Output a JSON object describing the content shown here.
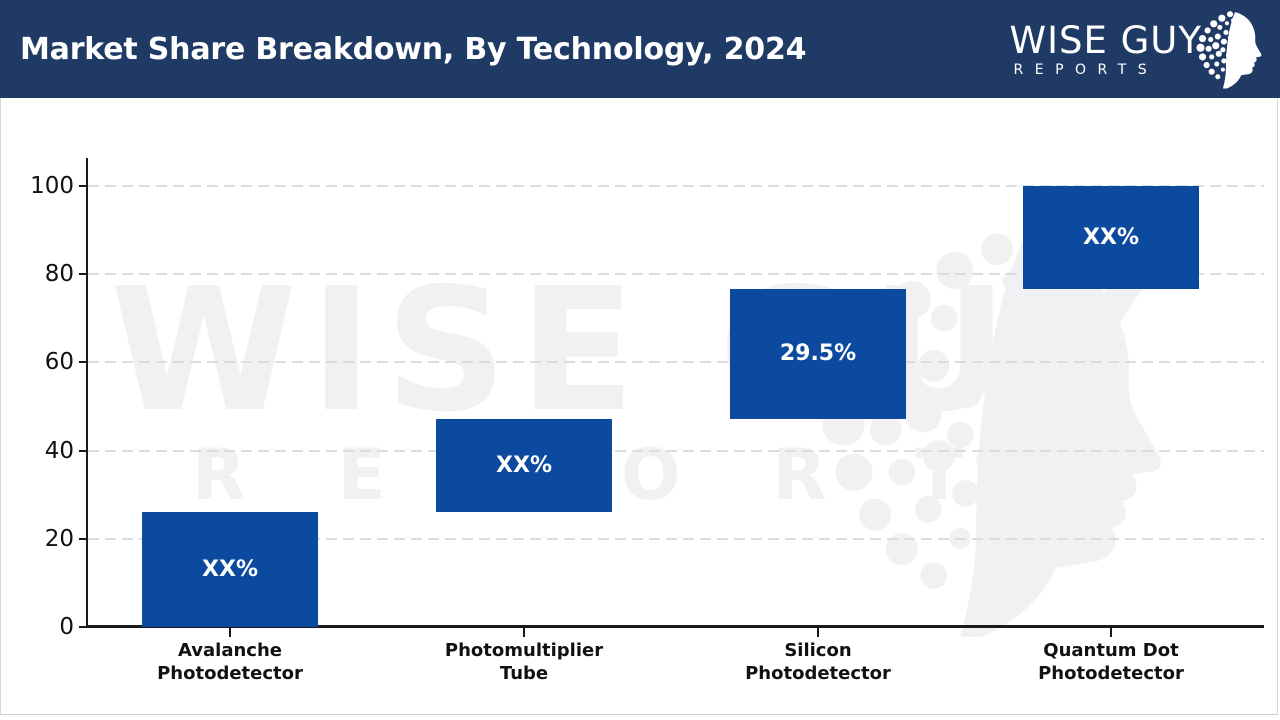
{
  "header": {
    "title": "Market Share Breakdown, By Technology, 2024",
    "bg_color": "#203a66",
    "logo": {
      "line1": "WISE GUY",
      "line2": "REPORTS"
    }
  },
  "watermark": {
    "line1": "WISE GUY",
    "line2": "REPORTS"
  },
  "chart_data": {
    "type": "bar",
    "variant": "floating-waterfall",
    "title": "Market Share Breakdown, By Technology, 2024",
    "categories": [
      [
        "Avalanche",
        "Photodetector"
      ],
      [
        "Photomultiplier",
        "Tube"
      ],
      [
        "Silicon",
        "Photodetector"
      ],
      [
        "Quantum Dot",
        "Photodetector"
      ]
    ],
    "segments": [
      {
        "start": 0,
        "end": 26,
        "label": "XX%"
      },
      {
        "start": 26,
        "end": 47.2,
        "label": "XX%"
      },
      {
        "start": 47.2,
        "end": 76.7,
        "label": "29.5%"
      },
      {
        "start": 76.7,
        "end": 100,
        "label": "XX%"
      }
    ],
    "xlabel": "",
    "ylabel": "",
    "ylim": [
      0,
      106
    ],
    "yticks": [
      0,
      20,
      40,
      60,
      80,
      100
    ],
    "grid": "horizontal-dashed",
    "legend": "none",
    "bar_color": "#0b4a9e",
    "value_label_color": "#ffffff",
    "grid_color": "#dcdcdc",
    "watermark_color": "#f1f1f4"
  }
}
